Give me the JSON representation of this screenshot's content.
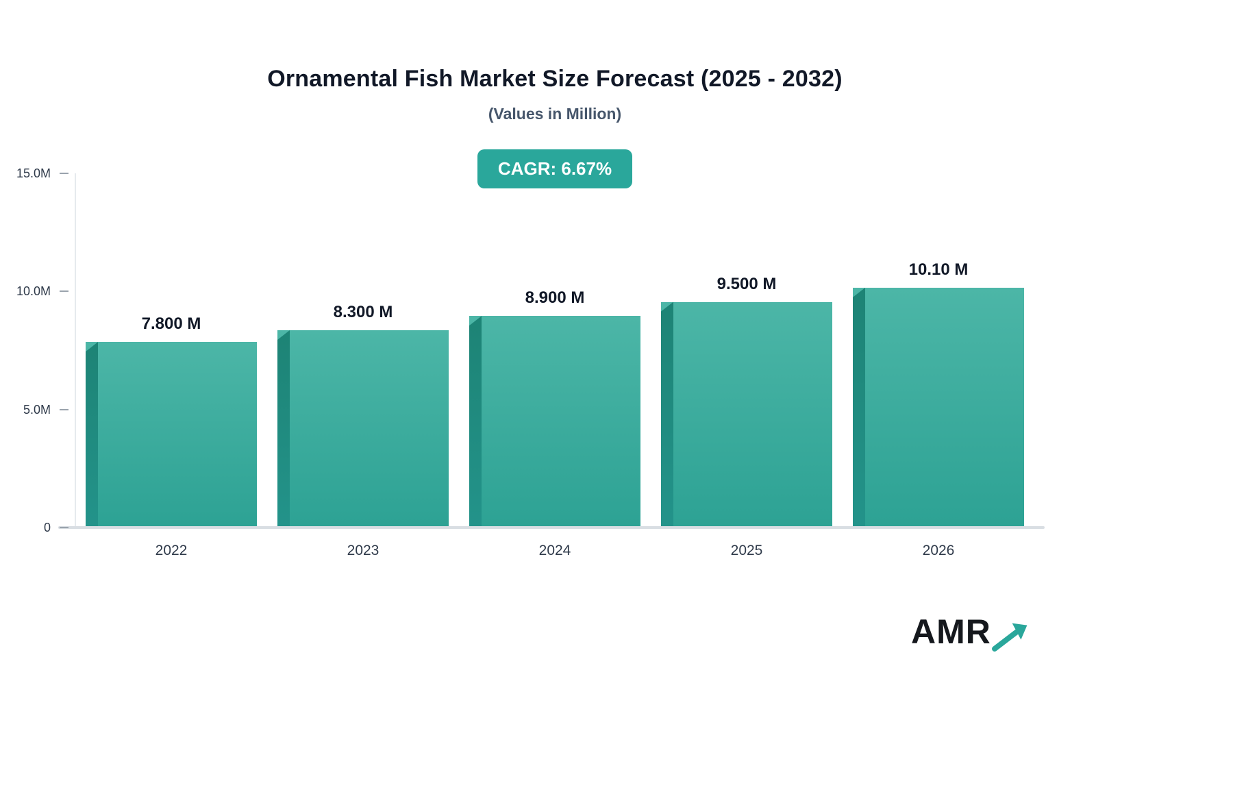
{
  "header": {
    "title": "Ornamental Fish Market Size Forecast (2025 - 2032)",
    "subtitle": "(Values in Million)"
  },
  "badge": {
    "label": "CAGR: 6.67%"
  },
  "chart_data": {
    "type": "bar",
    "title": "Ornamental Fish Market Size Forecast (2025 - 2032)",
    "subtitle": "(Values in Million)",
    "categories": [
      "2022",
      "2023",
      "2024",
      "2025",
      "2026"
    ],
    "values": [
      7.8,
      8.3,
      8.9,
      9.5,
      10.1
    ],
    "value_labels": [
      "7.800 M",
      "8.300 M",
      "8.900 M",
      "9.500 M",
      "10.10 M"
    ],
    "xlabel": "",
    "ylabel": "",
    "ylim": [
      0,
      15
    ],
    "yticks": [
      {
        "label": "15.0M",
        "value": 15
      },
      {
        "label": "10.0M",
        "value": 10
      },
      {
        "label": "5.0M",
        "value": 5
      },
      {
        "label": "0",
        "value": 0
      }
    ],
    "grid": false,
    "legend": false,
    "annotation": "CAGR: 6.67%"
  },
  "logo": {
    "text": "AMR"
  },
  "colors": {
    "bar_top": "#4cb6a7",
    "bar_bottom": "#2da294",
    "bar_side": "#1d8375",
    "bar_side2": "#23938a",
    "badge_bg": "#2aa79b",
    "baseline": "#d9dee3",
    "axis_line": "#e6eaee",
    "text_dark": "#111827",
    "text_slate": "#46566b",
    "text_axis": "#2f3a4a",
    "logo_arrow": "#2aa79b"
  }
}
